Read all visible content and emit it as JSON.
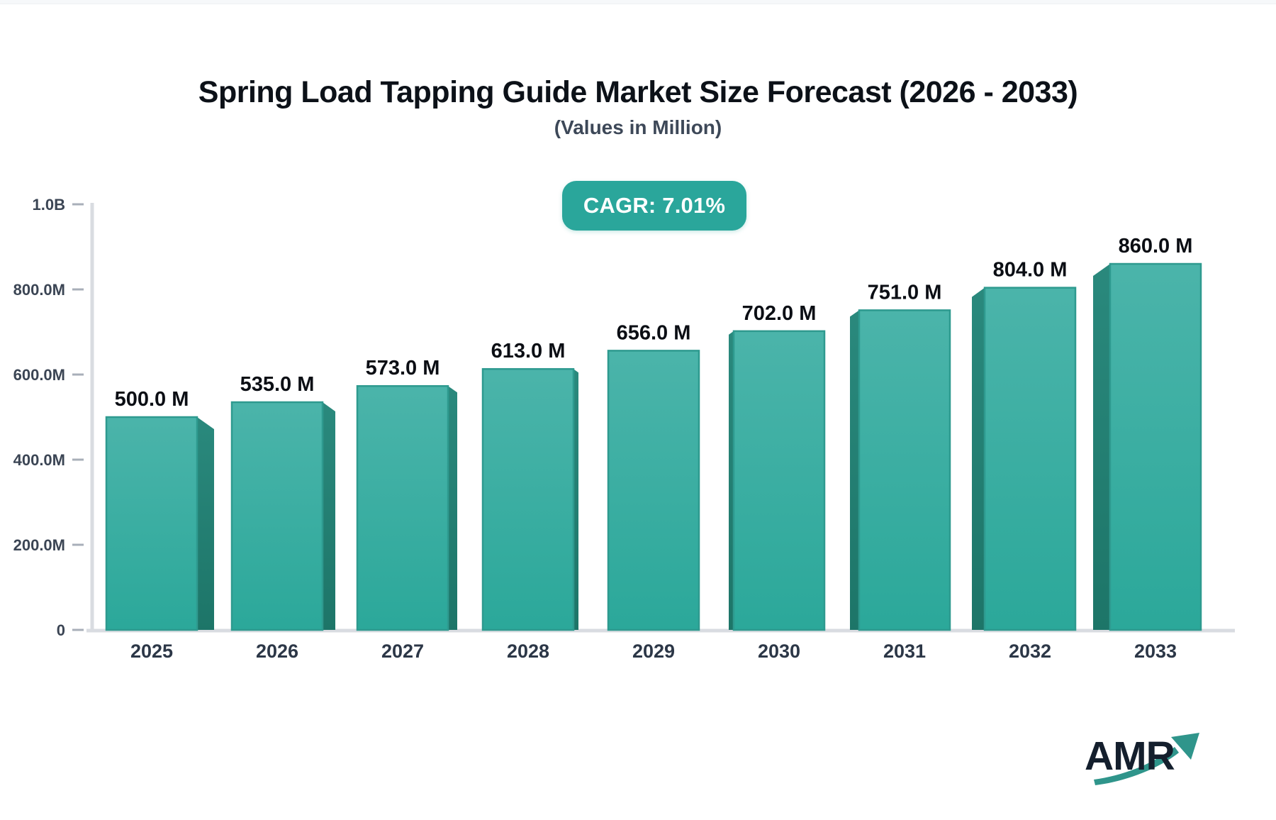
{
  "header": {
    "title": "Spring Load Tapping Guide Market Size Forecast (2026 - 2033)",
    "subtitle": "(Values in Million)",
    "cagr_badge": "CAGR: 7.01%"
  },
  "chart_data": {
    "type": "bar",
    "title": "Spring Load Tapping Guide Market Size Forecast (2026 - 2033)",
    "subtitle": "(Values in Million)",
    "cagr": "7.01%",
    "categories": [
      "2025",
      "2026",
      "2027",
      "2028",
      "2029",
      "2030",
      "2031",
      "2032",
      "2033"
    ],
    "values": [
      500,
      535,
      573,
      613,
      656,
      702,
      751,
      804,
      860
    ],
    "value_labels": [
      "500.0 M",
      "535.0 M",
      "573.0 M",
      "613.0 M",
      "656.0 M",
      "702.0 M",
      "751.0 M",
      "804.0 M",
      "860.0 M"
    ],
    "y_ticks": [
      {
        "label": "1.0B",
        "value": 1000
      },
      {
        "label": "800.0M",
        "value": 800
      },
      {
        "label": "600.0M",
        "value": 600
      },
      {
        "label": "400.0M",
        "value": 400
      },
      {
        "label": "200.0M",
        "value": 200
      },
      {
        "label": "0",
        "value": 0
      }
    ],
    "ylim_millions": [
      0,
      1000
    ],
    "grid": "off",
    "legend": "none",
    "colors": {
      "bar_face_top": "#4bb4aa",
      "bar_face_bottom": "#2ba89a",
      "bar_face_stroke": "#2e9a8f",
      "bar_side_top": "#2a897d",
      "bar_side_bottom": "#1d7568",
      "badge_bg": "#2aa69b",
      "axis_line": "#d9dce1",
      "tick_mark": "#a8afb9",
      "tick_text": "#3b4554",
      "year_text": "#2c3747",
      "value_text": "#0b0e14"
    }
  },
  "logo": {
    "text": "AMR",
    "arrow_color": "#2f958b"
  }
}
